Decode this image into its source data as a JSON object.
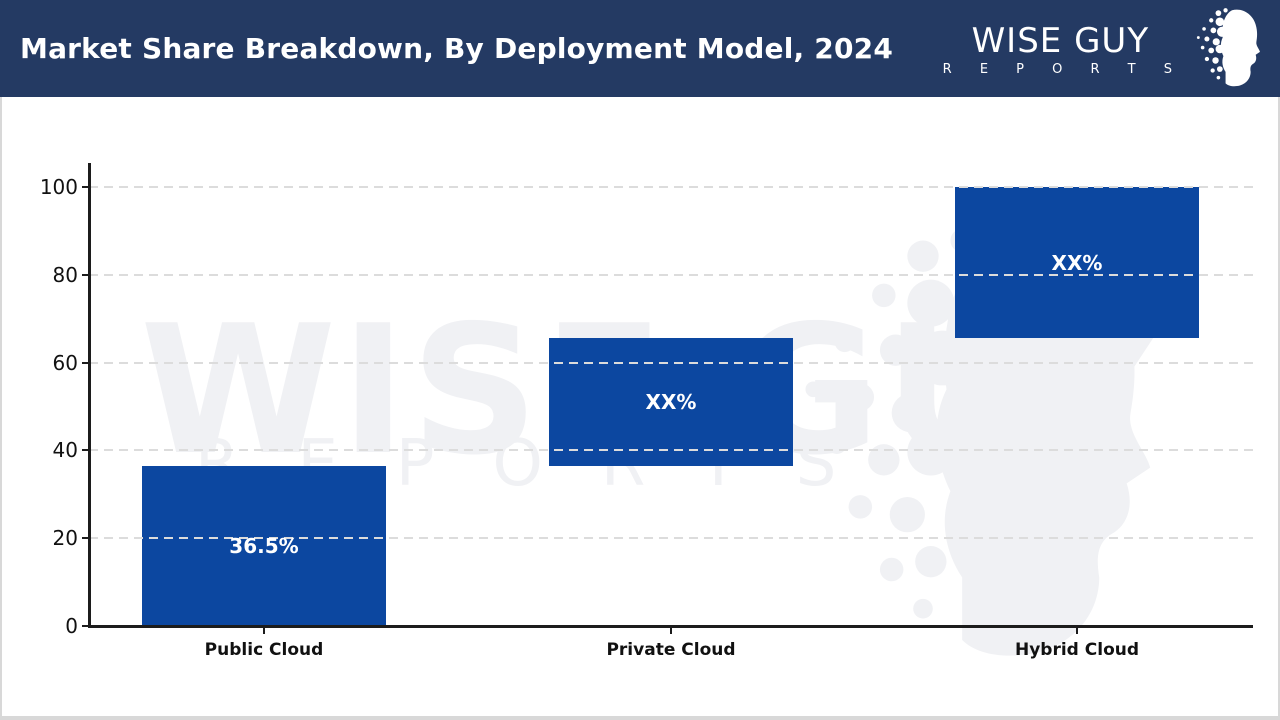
{
  "header": {
    "title": "Market Share Breakdown, By Deployment Model, 2024",
    "logo_line1": "WISE GUY",
    "logo_line2": "R E P O R T S"
  },
  "watermark": {
    "line1": "WISE GUY",
    "line2": "REPORTS"
  },
  "chart_data": {
    "type": "bar",
    "subtype": "waterfall",
    "title": "Market Share Breakdown, By Deployment Model, 2024",
    "categories": [
      "Public Cloud",
      "Private Cloud",
      "Hybrid Cloud"
    ],
    "bars": [
      {
        "category": "Public Cloud",
        "start": 0,
        "end": 36.5,
        "label": "36.5%"
      },
      {
        "category": "Private Cloud",
        "start": 36.5,
        "end": 65.5,
        "label": "XX%"
      },
      {
        "category": "Hybrid Cloud",
        "start": 65.5,
        "end": 100,
        "label": "XX%"
      }
    ],
    "xlabel": "",
    "ylabel": "",
    "y_ticks": [
      0,
      20,
      40,
      60,
      80,
      100
    ],
    "ylim": [
      0,
      105
    ],
    "grid": "horizontal-dashed",
    "legend": "none"
  },
  "colors": {
    "header_bg": "#243a63",
    "bar_fill": "#0c47a0",
    "grid_line": "#dcdcdc",
    "axis_line": "#1c1c1c",
    "watermark": "#f0f1f4",
    "title_text": "#ffffff",
    "bar_label_text": "#ffffff"
  }
}
